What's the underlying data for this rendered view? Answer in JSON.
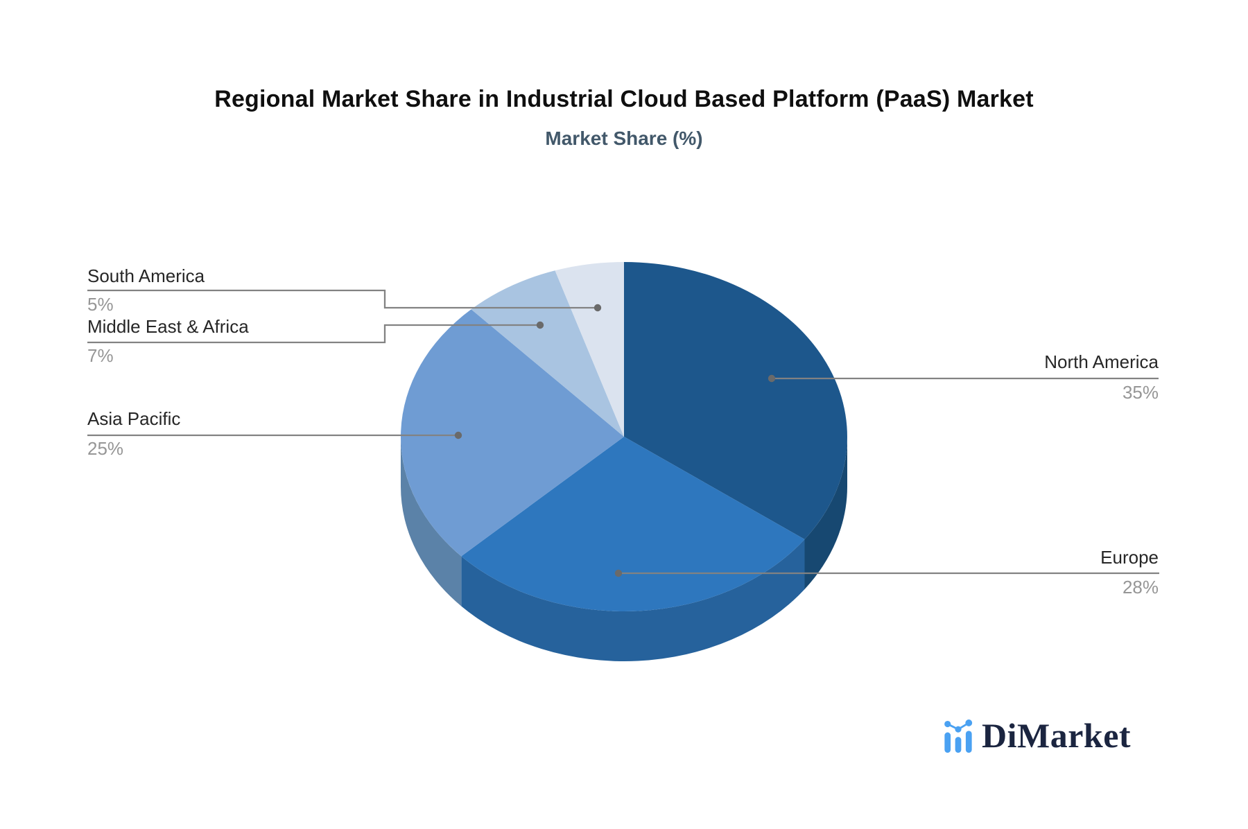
{
  "title": "Regional Market Share in Industrial Cloud Based Platform (PaaS) Market",
  "subtitle": "Market Share (%)",
  "chart_data": {
    "type": "pie",
    "style": "3d",
    "start_angle_deg": 0,
    "direction": "clockwise",
    "labels": [
      "North America",
      "Europe",
      "Asia Pacific",
      "Middle East & Africa",
      "South America"
    ],
    "values": [
      35,
      28,
      25,
      7,
      5
    ],
    "value_labels": [
      "35%",
      "28%",
      "25%",
      "7%",
      "5%"
    ],
    "colors": [
      "#1d578c",
      "#2e77be",
      "#6f9cd3",
      "#a9c4e1",
      "#dbe3ef"
    ],
    "side_colors": [
      "#174871",
      "#26629c",
      "#5b82a8",
      "#8fb0d4",
      "#c3cfe0"
    ],
    "leader_line_color": "#828282",
    "leader_dot_color": "#6a6a6a",
    "label_color": "#262626",
    "value_color": "#969696",
    "legend": "none",
    "grid": "off"
  },
  "logo": {
    "text": "DiMarket",
    "icon": "bar-line-chart-icon",
    "text_color": "#1b2540",
    "icon_color": "#4aa1f2"
  }
}
